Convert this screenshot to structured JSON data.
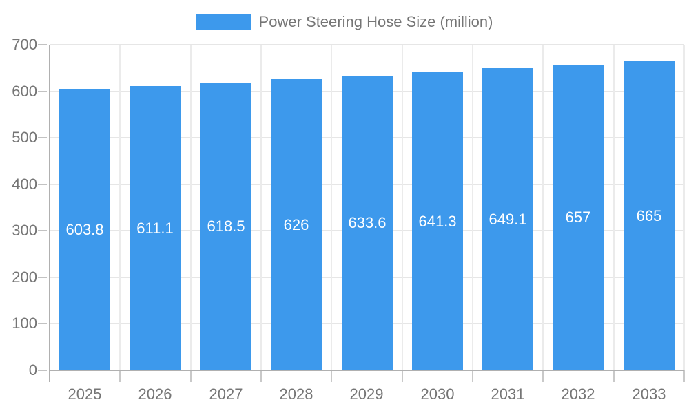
{
  "chart_data": {
    "type": "bar",
    "title": "Power Steering Hose Size (million)",
    "categories": [
      "2025",
      "2026",
      "2027",
      "2028",
      "2029",
      "2030",
      "2031",
      "2032",
      "2033"
    ],
    "values": [
      603.8,
      611.1,
      618.5,
      626,
      633.6,
      641.3,
      649.1,
      657,
      665
    ],
    "value_labels": [
      "603.8",
      "611.1",
      "618.5",
      "626",
      "633.6",
      "641.3",
      "649.1",
      "657",
      "665"
    ],
    "xlabel": "",
    "ylabel": "",
    "ylim": [
      0,
      700
    ],
    "yticks": [
      0,
      100,
      200,
      300,
      400,
      500,
      600,
      700
    ],
    "grid": true,
    "legend_position": "top",
    "colors": {
      "bar": "#3D99EC",
      "value_label": "#FFFFFF",
      "axis_text": "#757575",
      "axis_line": "#B0B0B0",
      "gridline": "#E6E6E6"
    }
  }
}
